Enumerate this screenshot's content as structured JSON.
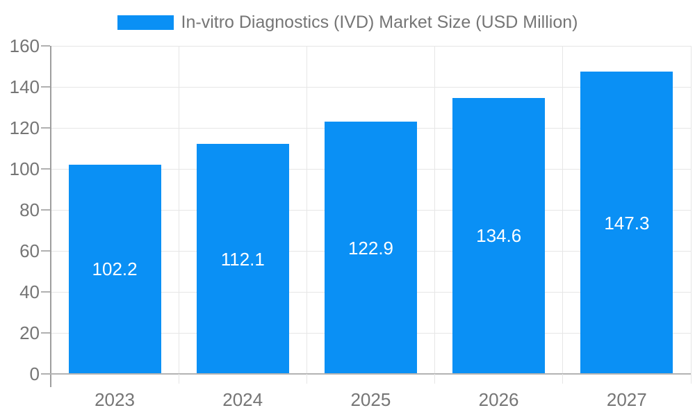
{
  "chart_data": {
    "type": "bar",
    "title": "In-vitro Diagnostics (IVD) Market Size (USD Million)",
    "categories": [
      "2023",
      "2024",
      "2025",
      "2026",
      "2027"
    ],
    "values": [
      102.2,
      112.1,
      122.9,
      134.6,
      147.3
    ],
    "value_labels": [
      "102.2",
      "112.1",
      "122.9",
      "134.6",
      "147.3"
    ],
    "series": [
      {
        "name": "In-vitro Diagnostics (IVD) Market Size (USD Million)",
        "values": [
          102.2,
          112.1,
          122.9,
          134.6,
          147.3
        ]
      }
    ],
    "xlabel": "",
    "ylabel": "",
    "ylim": [
      0,
      160
    ],
    "ytick_step": 20,
    "yticks": [
      0,
      20,
      40,
      60,
      80,
      100,
      120,
      140,
      160
    ],
    "grid": true,
    "bar_label_position": "inside-center",
    "legend": {
      "position": "top",
      "entries": [
        "In-vitro Diagnostics (IVD) Market Size (USD Million)"
      ]
    }
  },
  "colors": {
    "bar": "#0a90f5",
    "bar_label": "#ffffff",
    "axis_text": "#757575",
    "grid_line": "#e6e6e6",
    "axis_line": "#9e9e9e",
    "baseline": "#b3b3b3",
    "tick": "#b0b0b0",
    "background": "#ffffff"
  }
}
